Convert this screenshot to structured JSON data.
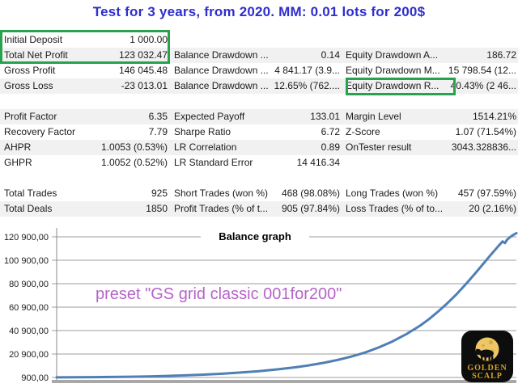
{
  "title": "Test for 3 years, from 2020. MM: 0.01 lots for 200$",
  "stats": {
    "sections": [
      {
        "rows": [
          {
            "stripe": false,
            "cells": [
              {
                "label": "Initial Deposit",
                "value": "1 000.00"
              },
              {
                "label": "",
                "value": ""
              },
              {
                "label": "",
                "value": ""
              }
            ]
          },
          {
            "stripe": true,
            "cells": [
              {
                "label": "Total Net Profit",
                "value": "123 032.47"
              },
              {
                "label": "Balance Drawdown ...",
                "value": "0.14"
              },
              {
                "label": "Equity Drawdown A...",
                "value": "186.72"
              }
            ]
          },
          {
            "stripe": false,
            "cells": [
              {
                "label": "Gross Profit",
                "value": "146 045.48"
              },
              {
                "label": "Balance Drawdown ...",
                "value": "4 841.17 (3.9..."
              },
              {
                "label": "Equity Drawdown M...",
                "value": "15 798.54 (12..."
              }
            ]
          },
          {
            "stripe": true,
            "cells": [
              {
                "label": "Gross Loss",
                "value": "-23 013.01"
              },
              {
                "label": "Balance Drawdown ...",
                "value": "12.65% (762...."
              },
              {
                "label": "Equity Drawdown R...",
                "value": "40.43% (2 46..."
              }
            ]
          }
        ]
      },
      {
        "rows": [
          {
            "stripe": true,
            "cells": [
              {
                "label": "Profit Factor",
                "value": "6.35"
              },
              {
                "label": "Expected Payoff",
                "value": "133.01"
              },
              {
                "label": "Margin Level",
                "value": "1514.21%"
              }
            ]
          },
          {
            "stripe": false,
            "cells": [
              {
                "label": "Recovery Factor",
                "value": "7.79"
              },
              {
                "label": "Sharpe Ratio",
                "value": "6.72"
              },
              {
                "label": "Z-Score",
                "value": "1.07 (71.54%)"
              }
            ]
          },
          {
            "stripe": true,
            "cells": [
              {
                "label": "AHPR",
                "value": "1.0053 (0.53%)"
              },
              {
                "label": "LR Correlation",
                "value": "0.89"
              },
              {
                "label": "OnTester result",
                "value": "3043.328836..."
              }
            ]
          },
          {
            "stripe": false,
            "cells": [
              {
                "label": "GHPR",
                "value": "1.0052 (0.52%)"
              },
              {
                "label": "LR Standard Error",
                "value": "14 416.34"
              },
              {
                "label": "",
                "value": ""
              }
            ]
          }
        ]
      },
      {
        "rows": [
          {
            "stripe": false,
            "cells": [
              {
                "label": "Total Trades",
                "value": "925"
              },
              {
                "label": "Short Trades (won %)",
                "value": "468 (98.08%)"
              },
              {
                "label": "Long Trades (won %)",
                "value": "457 (97.59%)"
              }
            ]
          },
          {
            "stripe": true,
            "cells": [
              {
                "label": "Total Deals",
                "value": "1850"
              },
              {
                "label": "Profit Trades (% of t...",
                "value": "905 (97.84%)"
              },
              {
                "label": "Loss Trades (% of to...",
                "value": "20 (2.16%)"
              }
            ]
          }
        ]
      }
    ]
  },
  "preset_label": "preset \"GS grid classic 001for200\"",
  "chart_data": {
    "type": "line",
    "title": "Balance graph",
    "xlabel": "",
    "ylabel": "",
    "grid": true,
    "ylim": [
      900,
      130900
    ],
    "y_ticks": [
      {
        "label": "120 900,00",
        "value": 120900
      },
      {
        "label": "100 900,00",
        "value": 100900
      },
      {
        "label": "80 900,00",
        "value": 80900
      },
      {
        "label": "60 900,00",
        "value": 60900
      },
      {
        "label": "40 900,00",
        "value": 40900
      },
      {
        "label": "20 900,00",
        "value": 20900
      },
      {
        "label": "900,00",
        "value": 900
      }
    ],
    "series": [
      {
        "name": "Balance",
        "points": [
          [
            0,
            1000
          ],
          [
            4,
            1050
          ],
          [
            8,
            1150
          ],
          [
            12,
            1300
          ],
          [
            16,
            1500
          ],
          [
            20,
            1800
          ],
          [
            24,
            2200
          ],
          [
            28,
            2700
          ],
          [
            32,
            3300
          ],
          [
            36,
            4100
          ],
          [
            40,
            5100
          ],
          [
            44,
            6300
          ],
          [
            48,
            7800
          ],
          [
            52,
            9600
          ],
          [
            55,
            11300
          ],
          [
            58,
            13300
          ],
          [
            61,
            15700
          ],
          [
            64,
            18600
          ],
          [
            67,
            22100
          ],
          [
            70,
            26400
          ],
          [
            73,
            31500
          ],
          [
            76,
            37700
          ],
          [
            79,
            45000
          ],
          [
            81,
            50700
          ],
          [
            83,
            57200
          ],
          [
            85,
            64300
          ],
          [
            87,
            72000
          ],
          [
            89,
            80500
          ],
          [
            91,
            89500
          ],
          [
            92.5,
            96500
          ],
          [
            94,
            103500
          ],
          [
            95.2,
            109000
          ],
          [
            96.2,
            113500
          ],
          [
            97,
            117000
          ],
          [
            97.5,
            115500
          ],
          [
            98,
            118500
          ],
          [
            98.6,
            120500
          ],
          [
            99.2,
            122300
          ],
          [
            100,
            124000
          ]
        ]
      }
    ]
  },
  "logo": {
    "line1": "GOLDEN",
    "line2": "SCALP"
  },
  "colors": {
    "title_blue": "#2e2ecf",
    "preset_magenta": "#b564c8",
    "balance_line_blue": "#4f7fb5",
    "highlight_green": "#26a34c",
    "row_stripe": "#f1f1f1",
    "logo_gold": "#d8a125"
  }
}
